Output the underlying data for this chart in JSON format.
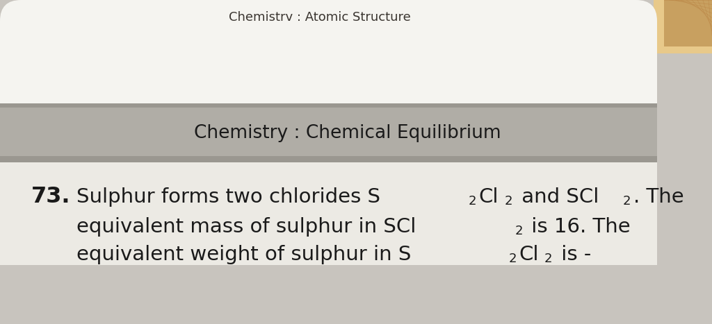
{
  "header_text": "Chemistrv : Atomic Structure",
  "section_title": "Chemistry : Chemical Equilibrium",
  "question_number": "73.",
  "bg_outer_gray": "#c8c4be",
  "bg_white_page": "#f5f4f0",
  "bg_section_bar": "#b0ada6",
  "bg_section_bar_dark": "#9a9790",
  "bg_content": "#eceae4",
  "text_color_header": "#3a3530",
  "text_color_section": "#1a1a1a",
  "text_color_question": "#1a1a1a",
  "header_fontsize": 13,
  "section_fontsize": 19,
  "question_fontsize": 21,
  "number_fontsize": 23,
  "corner_color1": "#e8c98a",
  "corner_color2": "#c8a060"
}
